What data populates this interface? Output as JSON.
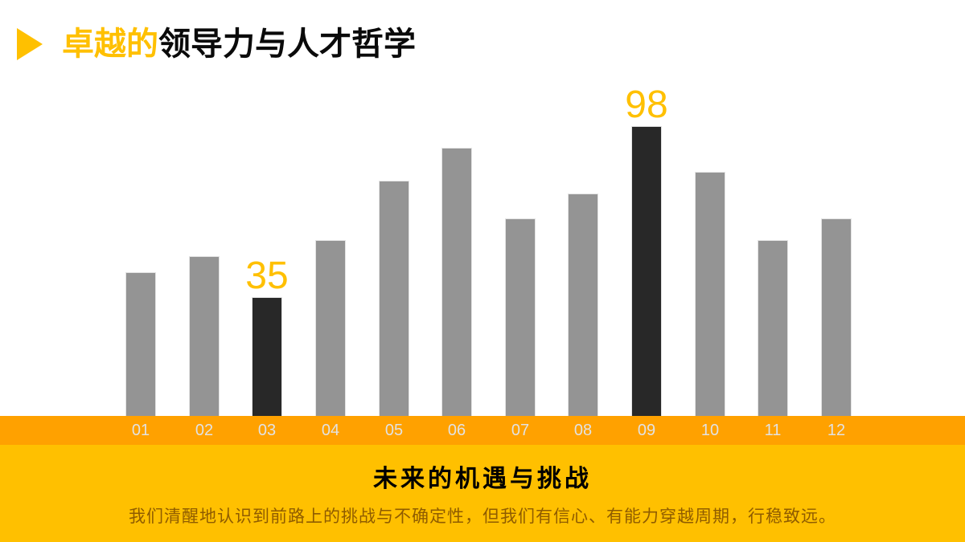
{
  "title": {
    "highlight": "卓越的",
    "rest": "领导力与人才哲学"
  },
  "icons": {
    "title_marker": "right-pointing-triangle"
  },
  "footer": {
    "heading": "未来的机遇与挑战",
    "subtitle": "我们清醒地认识到前路上的挑战与不确定性，但我们有信心、有能力穿越周期，行稳致远。"
  },
  "colors": {
    "accent": "#FFC000",
    "axis_strip": "#FFA100",
    "footer_band": "#FFC000",
    "bar_gray": "#949494",
    "bar_dark": "#282828",
    "bar_border": "#E3E3E3",
    "axis_label": "#E2E2E2",
    "subtitle_text": "#8F5C00",
    "title_dark": "#0A0A0A"
  },
  "chart_data": {
    "type": "bar",
    "categories": [
      "01",
      "02",
      "03",
      "04",
      "05",
      "06",
      "07",
      "08",
      "09",
      "10",
      "11",
      "12"
    ],
    "values": [
      44,
      50,
      35,
      56,
      78,
      90,
      64,
      73,
      98,
      81,
      56,
      64
    ],
    "highlighted_categories": [
      "03",
      "09"
    ],
    "data_labels": {
      "03": "35",
      "09": "98"
    },
    "title": "",
    "xlabel": "",
    "ylabel": "",
    "ylim": [
      0,
      110
    ],
    "grid": false,
    "legend": "none",
    "bar_color": "#949494",
    "highlight_color": "#282828",
    "data_label_color": "#FFC000",
    "x_axis_style": "labels-inside-orange-strip"
  }
}
